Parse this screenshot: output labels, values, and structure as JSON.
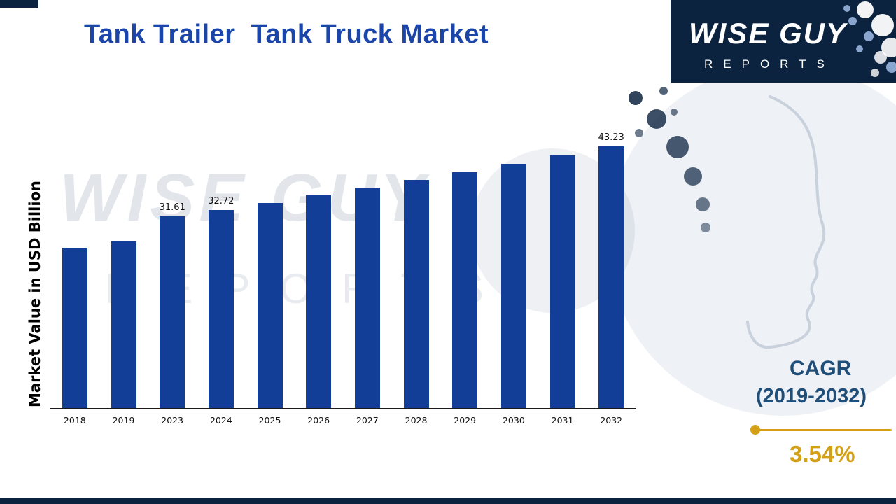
{
  "page": {
    "title": "Tank Trailer  Tank Truck Market"
  },
  "logo": {
    "line1": "WISE GUY",
    "line2": "REPORTS"
  },
  "watermark": {
    "line1": "WISE GUY",
    "line2": "REPORTS"
  },
  "cagr": {
    "label": "CAGR",
    "range": "(2019-2032)",
    "value": "3.54%"
  },
  "colors": {
    "bar": "#123e97",
    "title": "#1b45a8",
    "navy": "#0c2340",
    "gold": "#d4a017",
    "cagr_text": "#1f4e79"
  },
  "chart_data": {
    "type": "bar",
    "title": "Tank Trailer  Tank Truck Market",
    "xlabel": "",
    "ylabel": "Market Value in USD Billion",
    "categories": [
      "2018",
      "2019",
      "2023",
      "2024",
      "2025",
      "2026",
      "2027",
      "2028",
      "2029",
      "2030",
      "2031",
      "2032"
    ],
    "values": [
      26.5,
      27.5,
      31.61,
      32.72,
      33.88,
      35.08,
      36.32,
      37.6,
      38.94,
      40.31,
      41.74,
      43.23
    ],
    "value_labels": [
      "",
      "",
      "31.61",
      "32.72",
      "",
      "",
      "",
      "",
      "",
      "",
      "",
      "43.23"
    ],
    "ylim": [
      0,
      50
    ],
    "grid": false,
    "legend": "none",
    "bar_color": "#123e97"
  }
}
